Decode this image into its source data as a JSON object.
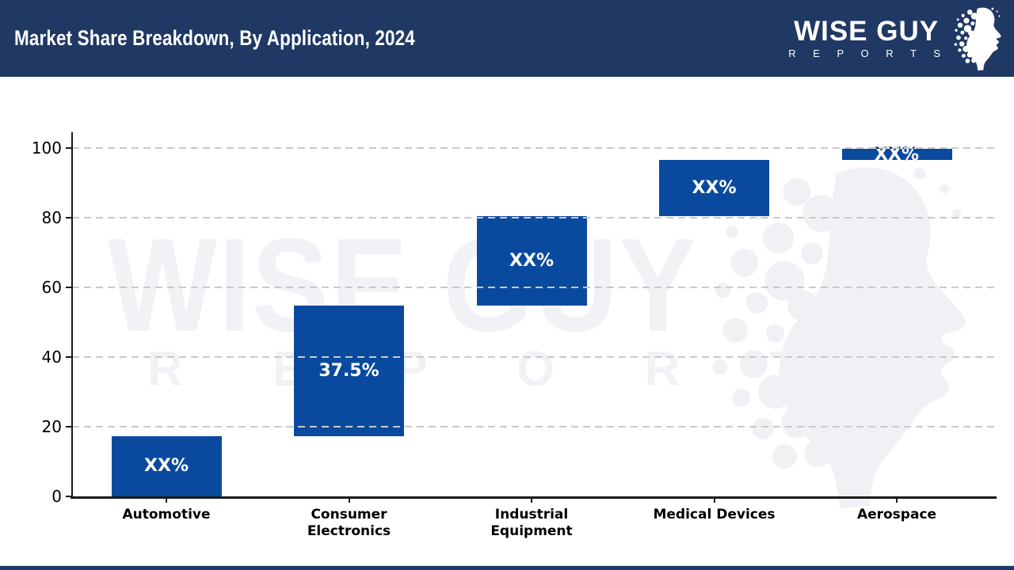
{
  "header": {
    "title": "Market Share Breakdown, By Application, 2024",
    "logo": {
      "line1": "WISE GUY",
      "line2": "R E P O R T S"
    }
  },
  "watermark": {
    "line1": "WISE GUY",
    "line2": "R E P O R T S"
  },
  "chart_data": {
    "type": "bar",
    "subtype": "floating-waterfall",
    "title": "Market Share Breakdown, By Application, 2024",
    "categories": [
      "Automotive",
      "Consumer Electronics",
      "Industrial Equipment",
      "Medical Devices",
      "Aerospace"
    ],
    "category_label_lines": [
      [
        "Automotive"
      ],
      [
        "Consumer",
        "Electronics"
      ],
      [
        "Industrial",
        "Equipment"
      ],
      [
        "Medical Devices"
      ],
      [
        "Aerospace"
      ]
    ],
    "series": [
      {
        "name": "Market Share",
        "segments": [
          {
            "start": 0,
            "end": 17.25
          },
          {
            "start": 17.25,
            "end": 54.75
          },
          {
            "start": 54.75,
            "end": 80.4
          },
          {
            "start": 80.4,
            "end": 96.4
          },
          {
            "start": 96.4,
            "end": 99.6
          }
        ]
      }
    ],
    "bar_labels": [
      "XX%",
      "37.5%",
      "XX%",
      "XX%",
      "XX%"
    ],
    "xlabel": "",
    "ylabel": "",
    "ylim": [
      0,
      100
    ],
    "yticks": [
      0,
      20,
      40,
      60,
      80,
      100
    ],
    "grid": "horizontal dashed, drawn over bars",
    "legend": "none"
  },
  "colors": {
    "header_bg": "#1f3864",
    "footer_bg": "#1f3864",
    "bar": "#0a4a9e",
    "bar_label": "#ffffff",
    "bar_label_outline": "#14325e",
    "grid": "#c9c9c9",
    "axis": "#1a1a1a",
    "watermark": "#f1f2f5"
  }
}
